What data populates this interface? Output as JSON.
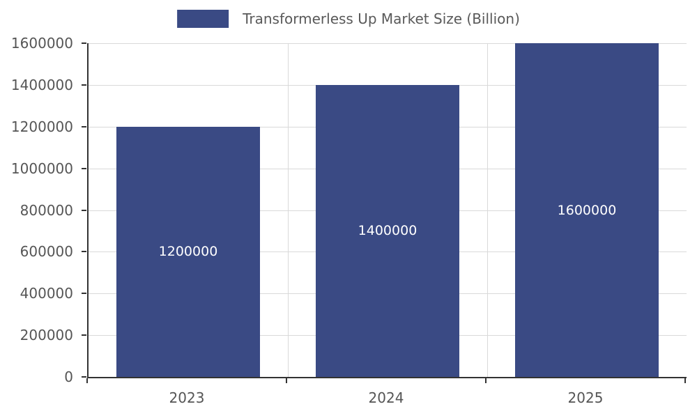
{
  "legend": {
    "label": "Transformerless Up Market Size (Billion)"
  },
  "chart_data": {
    "type": "bar",
    "title": "Transformerless Up Market Size (Billion)",
    "categories": [
      "2023",
      "2024",
      "2025"
    ],
    "values": [
      1200000,
      1400000,
      1600000
    ],
    "bar_labels": [
      "1200000",
      "1400000",
      "1600000"
    ],
    "xlabel": "",
    "ylabel": "",
    "ylim": [
      0,
      1600000
    ],
    "yticks": [
      0,
      200000,
      400000,
      600000,
      800000,
      1000000,
      1200000,
      1400000,
      1600000
    ],
    "ytick_labels": [
      "0",
      "200000",
      "400000",
      "600000",
      "800000",
      "1000000",
      "1200000",
      "1400000",
      "1600000"
    ],
    "grid": true,
    "legend_position": "top-center",
    "bar_width_fraction": 0.72,
    "colors": {
      "bar": "#3A4A84",
      "bar_label": "#ffffff",
      "axis_line": "#333333",
      "grid_line": "#d9d9d9",
      "tick_label": "#555555",
      "title": "#595959"
    }
  }
}
